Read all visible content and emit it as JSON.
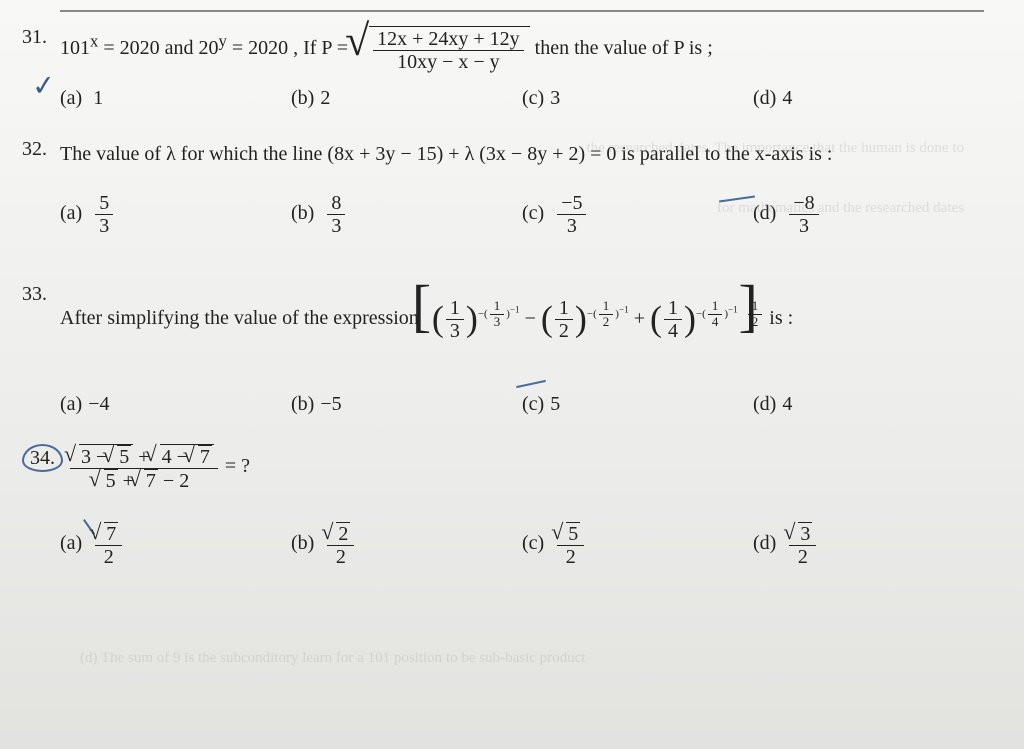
{
  "q31": {
    "num": "31.",
    "lhs1": "101",
    "exp1": "x",
    "eq1": "= 2020 and 20",
    "exp2": "y",
    "eq2": "= 2020 , If ",
    "pvar": "P =",
    "frac_num": "12x + 24xy + 12y",
    "frac_den": "10xy − x − y",
    "tail": " then the value of P is ;",
    "opts": {
      "a": "1",
      "b": "2",
      "c": "3",
      "d": "4"
    }
  },
  "q32": {
    "num": "32.",
    "text_a": "The value of ",
    "lambda": "λ",
    "text_b": " for which the line ",
    "expr": "(8x + 3y − 15) + λ (3x − 8y + 2) = 0",
    "text_c": " is parallel to the x-axis is :",
    "opts": {
      "a": {
        "n": "5",
        "d": "3"
      },
      "b": {
        "n": "8",
        "d": "3"
      },
      "c": {
        "n": "−5",
        "d": "3"
      },
      "d": {
        "n": "−8",
        "d": "3"
      }
    }
  },
  "q33": {
    "num": "33.",
    "text": "After simplifying the value of the expression ",
    "terms": [
      {
        "base_n": "1",
        "base_d": "3",
        "e_n": "1",
        "e_d": "3"
      },
      {
        "base_n": "1",
        "base_d": "2",
        "e_n": "1",
        "e_d": "2"
      },
      {
        "base_n": "1",
        "base_d": "4",
        "e_n": "1",
        "e_d": "4"
      }
    ],
    "outer_e_n": "1",
    "outer_e_d": "2",
    "tail": " is :",
    "opts": {
      "a": "−4",
      "b": "−5",
      "c": "5",
      "d": "4"
    }
  },
  "q34": {
    "num": "34.",
    "num_a": "3 − ",
    "num_b": "5",
    "num_mid": " + ",
    "num_c": "4 − ",
    "num_d": "7",
    "den_a": "5",
    "den_mid1": " + ",
    "den_b": "7",
    "den_mid2": " − 2",
    "tail": " = ?",
    "opts": {
      "a": {
        "n": "7",
        "d": "2",
        "sqrt": true
      },
      "b": {
        "n": "2",
        "d": "2",
        "sqrt": true
      },
      "c": {
        "n": "5",
        "d": "2",
        "sqrt": true
      },
      "d": {
        "n": "3",
        "d": "2",
        "sqrt": true
      }
    }
  },
  "labels": {
    "a": "(a)",
    "b": "(b)",
    "c": "(c)",
    "d": "(d)"
  }
}
